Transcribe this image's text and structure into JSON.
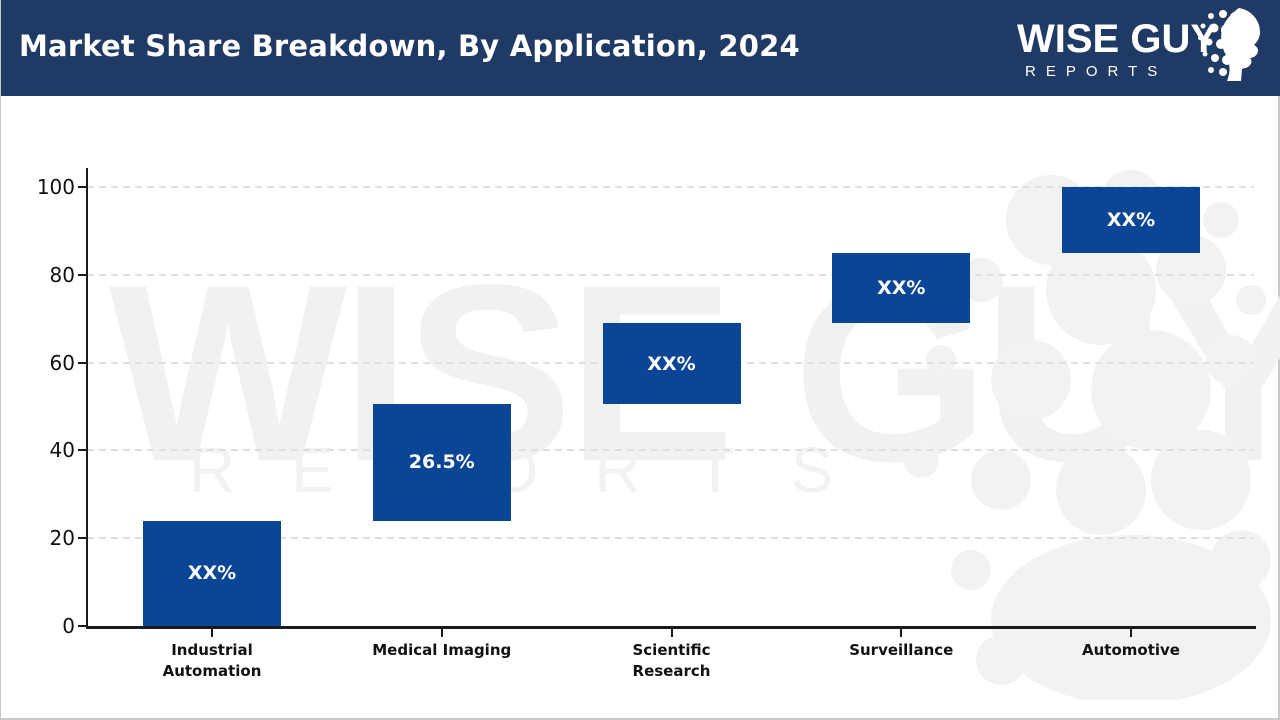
{
  "header": {
    "title": "Market Share Breakdown, By Application, 2024",
    "bg_color": "#203A66",
    "logo": {
      "name": "WISE GUY",
      "sub": "R E P O R T S"
    }
  },
  "watermark": {
    "line1": "WISE GUY",
    "line2": "REPORTS"
  },
  "chart_data": {
    "type": "bar",
    "subtype": "waterfall",
    "title": "Market Share Breakdown, By Application, 2024",
    "xlabel": "",
    "ylabel": "",
    "ylim": [
      0,
      100
    ],
    "yticks": [
      0,
      20,
      40,
      60,
      80,
      100
    ],
    "grid": "horizontal-dashed",
    "legend": "none",
    "bar_color": "#0A4596",
    "categories": [
      "Industrial Automation",
      "Medical Imaging",
      "Scientific Research",
      "Surveillance",
      "Automotive"
    ],
    "category_lines": [
      [
        "Industrial",
        "Automation"
      ],
      [
        "Medical Imaging"
      ],
      [
        "Scientific",
        "Research"
      ],
      [
        "Surveillance"
      ],
      [
        "Automotive"
      ]
    ],
    "segments": [
      {
        "category": "Industrial Automation",
        "label": "XX%",
        "start": 0,
        "end": 24
      },
      {
        "category": "Medical Imaging",
        "label": "26.5%",
        "start": 24,
        "end": 50.5
      },
      {
        "category": "Scientific Research",
        "label": "XX%",
        "start": 50.5,
        "end": 69
      },
      {
        "category": "Surveillance",
        "label": "XX%",
        "start": 69,
        "end": 85
      },
      {
        "category": "Automotive",
        "label": "XX%",
        "start": 85,
        "end": 100
      }
    ]
  }
}
